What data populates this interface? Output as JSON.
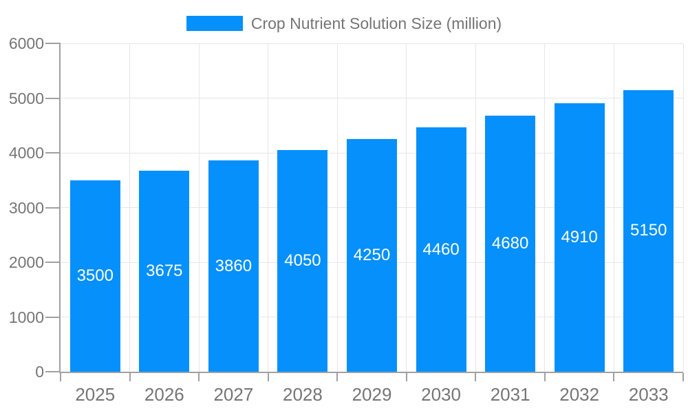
{
  "chart_data": {
    "type": "bar",
    "title": "Crop Nutrient Solution Size (million)",
    "categories": [
      "2025",
      "2026",
      "2027",
      "2028",
      "2029",
      "2030",
      "2031",
      "2032",
      "2033"
    ],
    "values": [
      3500,
      3675,
      3860,
      4050,
      4250,
      4460,
      4680,
      4910,
      5150
    ],
    "xlabel": "",
    "ylabel": "",
    "ylim": [
      0,
      6000
    ],
    "ytick_step": 1000,
    "yticks": [
      0,
      1000,
      2000,
      3000,
      4000,
      5000,
      6000
    ],
    "grid": true,
    "legend_position": "top",
    "value_labels": "centered-inside-bars",
    "colors": {
      "bar": "#0590fb",
      "grid_line": "#e6e6e6",
      "axis_line": "#a0a0a0",
      "tick_label": "#757575",
      "value_label": "#ffffff",
      "legend_text": "#757575"
    }
  }
}
